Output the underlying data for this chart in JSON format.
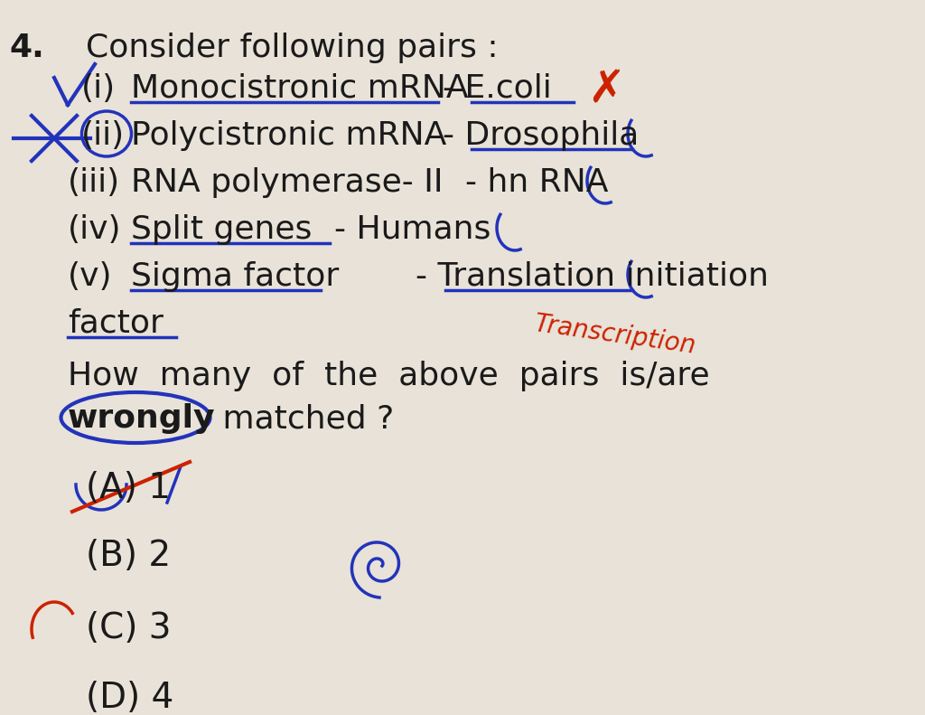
{
  "bg_color": "#e8e2d8",
  "text_color": "#1a1a1a",
  "blue_color": "#2233bb",
  "red_color": "#cc2200",
  "title": "Consider following pairs :",
  "question_num": "4.",
  "line_i": [
    "(i)",
    "Monocistronic mRNA",
    "- E.coli"
  ],
  "line_ii": [
    "(ii)",
    "Polycistronic mRNA",
    "- Drosophila"
  ],
  "line_iii": [
    "(iii)",
    "RNA polymerase- II",
    "- hn RNA"
  ],
  "line_iv": [
    "(iv)",
    "Split genes",
    "- Humans"
  ],
  "line_v1": [
    "(v)",
    "Sigma factor",
    "- Translation initiation"
  ],
  "line_v2": [
    "factor"
  ],
  "question1": "How  many  of  the  above  pairs  is/are",
  "question2": "wrongly matched ?",
  "wrongly_text": "wrongly",
  "opt_A": "(A) 1",
  "opt_B": "(B) 2",
  "opt_C": "(C) 3",
  "opt_D": "(D) 4",
  "transcription_text": "Transcription"
}
